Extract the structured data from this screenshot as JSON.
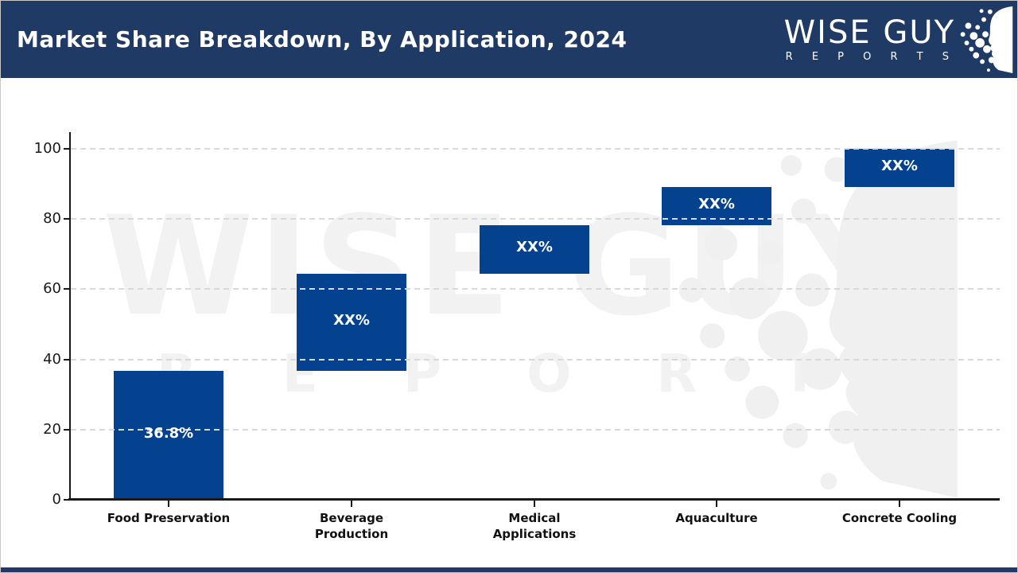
{
  "header": {
    "title": "Market Share Breakdown, By Application, 2024",
    "bg_color": "#203a66",
    "logo": {
      "line1": "WISE GUY",
      "line2": "R E P O R T S"
    }
  },
  "watermark": {
    "line1": "WISE GUY",
    "line2": "R E P O R T S"
  },
  "chart_data": {
    "type": "bar",
    "subtype": "waterfall",
    "title": "Market Share Breakdown, By Application, 2024",
    "xlabel": "",
    "ylabel": "",
    "ylim": [
      0,
      100
    ],
    "y_ticks": [
      0,
      20,
      40,
      60,
      80,
      100
    ],
    "grid": "dashed horizontal",
    "legend": "none",
    "bar_color": "#04418f",
    "value_label_color": "#ffffff",
    "categories": [
      "Food Preservation",
      "Beverage Production",
      "Medical Applications",
      "Aquaculture",
      "Concrete Cooling"
    ],
    "segments": [
      {
        "category": "Food Preservation",
        "display_lines": [
          "Food Preservation"
        ],
        "start": 0,
        "end": 36.8,
        "value": 36.8,
        "label": "36.8%"
      },
      {
        "category": "Beverage Production",
        "display_lines": [
          "Beverage",
          "Production"
        ],
        "start": 36.8,
        "end": 64.5,
        "value": 27.7,
        "label": "XX%"
      },
      {
        "category": "Medical Applications",
        "display_lines": [
          "Medical",
          "Applications"
        ],
        "start": 64.5,
        "end": 78.2,
        "value": 13.7,
        "label": "XX%"
      },
      {
        "category": "Aquaculture",
        "display_lines": [
          "Aquaculture"
        ],
        "start": 78.2,
        "end": 89.1,
        "value": 10.9,
        "label": "XX%"
      },
      {
        "category": "Concrete Cooling",
        "display_lines": [
          "Concrete Cooling"
        ],
        "start": 89.1,
        "end": 100,
        "value": 10.9,
        "label": "XX%"
      }
    ]
  }
}
